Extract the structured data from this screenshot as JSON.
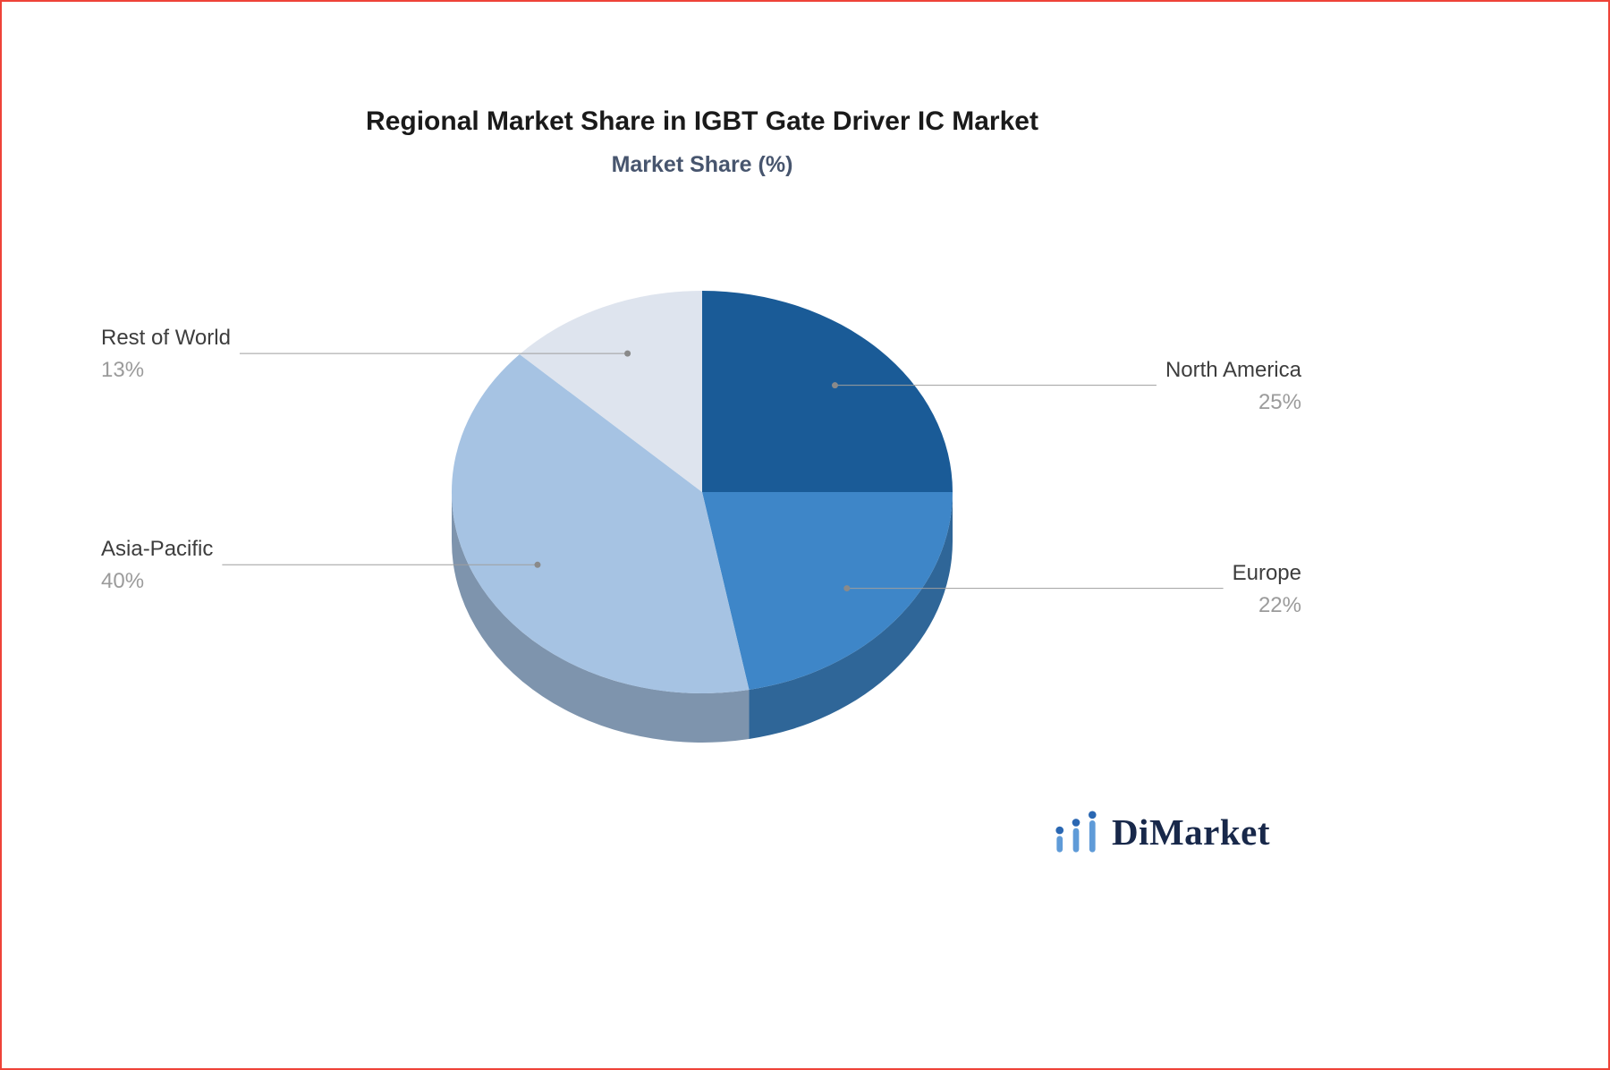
{
  "colors": {
    "background": "#ffffff",
    "border": "#ee4238",
    "title": "#1a1a1a",
    "subtitle": "#47556e",
    "label": "#3d3d3d",
    "value": "#9b9b9b",
    "leader": "#9e9e9e",
    "dot": "#8a8a8a",
    "logo_text": "#18284a",
    "logo_bar": "#5f9bd8",
    "logo_dot": "#2a67b2"
  },
  "header": {
    "title": "Regional Market Share in IGBT Gate Driver IC Market",
    "subtitle": "Market Share (%)"
  },
  "logo": {
    "text": "DiMarket",
    "icon": "bar-chart-dots-icon"
  },
  "chart_data": {
    "type": "pie",
    "style": "3d",
    "title": "Regional Market Share in IGBT Gate Driver IC Market",
    "subtitle": "Market Share (%)",
    "unit": "%",
    "direction": "clockwise",
    "start_angle_deg": 0,
    "legend_position": "none",
    "categories": [
      "North America",
      "Europe",
      "Asia-Pacific",
      "Rest of World"
    ],
    "values": [
      25,
      22,
      40,
      13
    ],
    "labels": [
      "25%",
      "22%",
      "40%",
      "13%"
    ],
    "colors": [
      "#1a5b97",
      "#3e86c8",
      "#a6c3e3",
      "#dee4ee"
    ],
    "label_sides": [
      "right",
      "right",
      "left",
      "left"
    ]
  }
}
